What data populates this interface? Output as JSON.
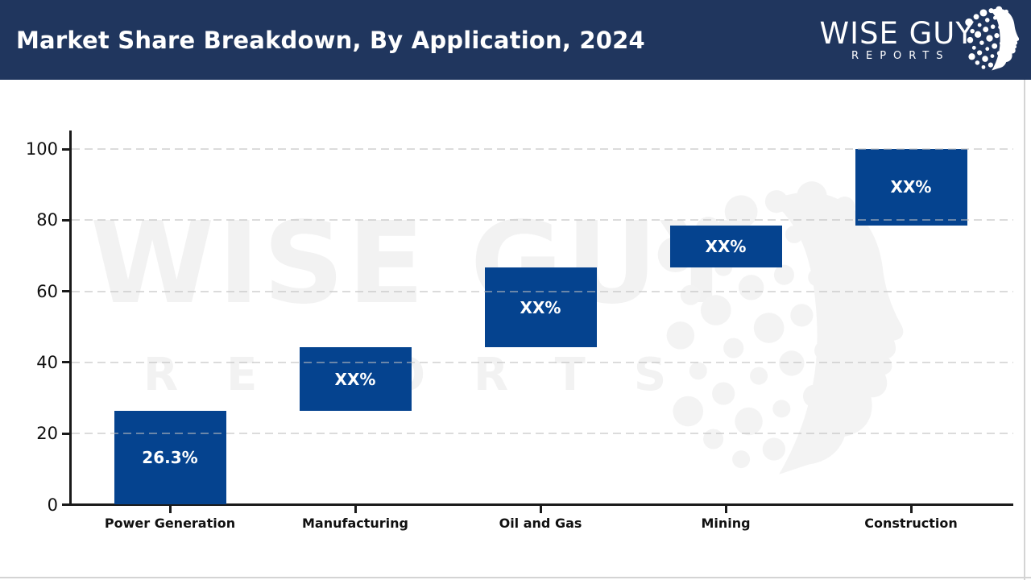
{
  "header": {
    "title": "Market Share Breakdown, By Application, 2024",
    "logo": {
      "line1": "WISE GUY",
      "line2": "REPORTS"
    }
  },
  "watermark": {
    "line1": "WISE GUY",
    "line2": "REPORTS"
  },
  "chart_data": {
    "type": "bar",
    "subtype": "waterfall",
    "title": "Market Share Breakdown, By Application, 2024",
    "categories": [
      "Power Generation",
      "Manufacturing",
      "Oil and Gas",
      "Mining",
      "Construction"
    ],
    "segments": [
      {
        "category": "Power Generation",
        "start": 0,
        "end": 26.3,
        "label": "26.3%"
      },
      {
        "category": "Manufacturing",
        "start": 26.3,
        "end": 44.2,
        "label": "XX%"
      },
      {
        "category": "Oil and Gas",
        "start": 44.2,
        "end": 66.7,
        "label": "XX%"
      },
      {
        "category": "Mining",
        "start": 66.7,
        "end": 78.5,
        "label": "XX%"
      },
      {
        "category": "Construction",
        "start": 78.5,
        "end": 100,
        "label": "XX%"
      }
    ],
    "xlabel": "",
    "ylabel": "",
    "yticks": [
      0,
      20,
      40,
      60,
      80,
      100
    ],
    "ylim": [
      0,
      100
    ],
    "grid": "horizontal-dashed",
    "legend": "none"
  },
  "colors": {
    "header_background": "#20365E",
    "bar": "#05438F",
    "bar_label": "#ffffff",
    "axis": "#1a1a1a",
    "gridline": "#dedede",
    "watermark": "#f2f2f2",
    "page_border": "#d4d4d4"
  }
}
